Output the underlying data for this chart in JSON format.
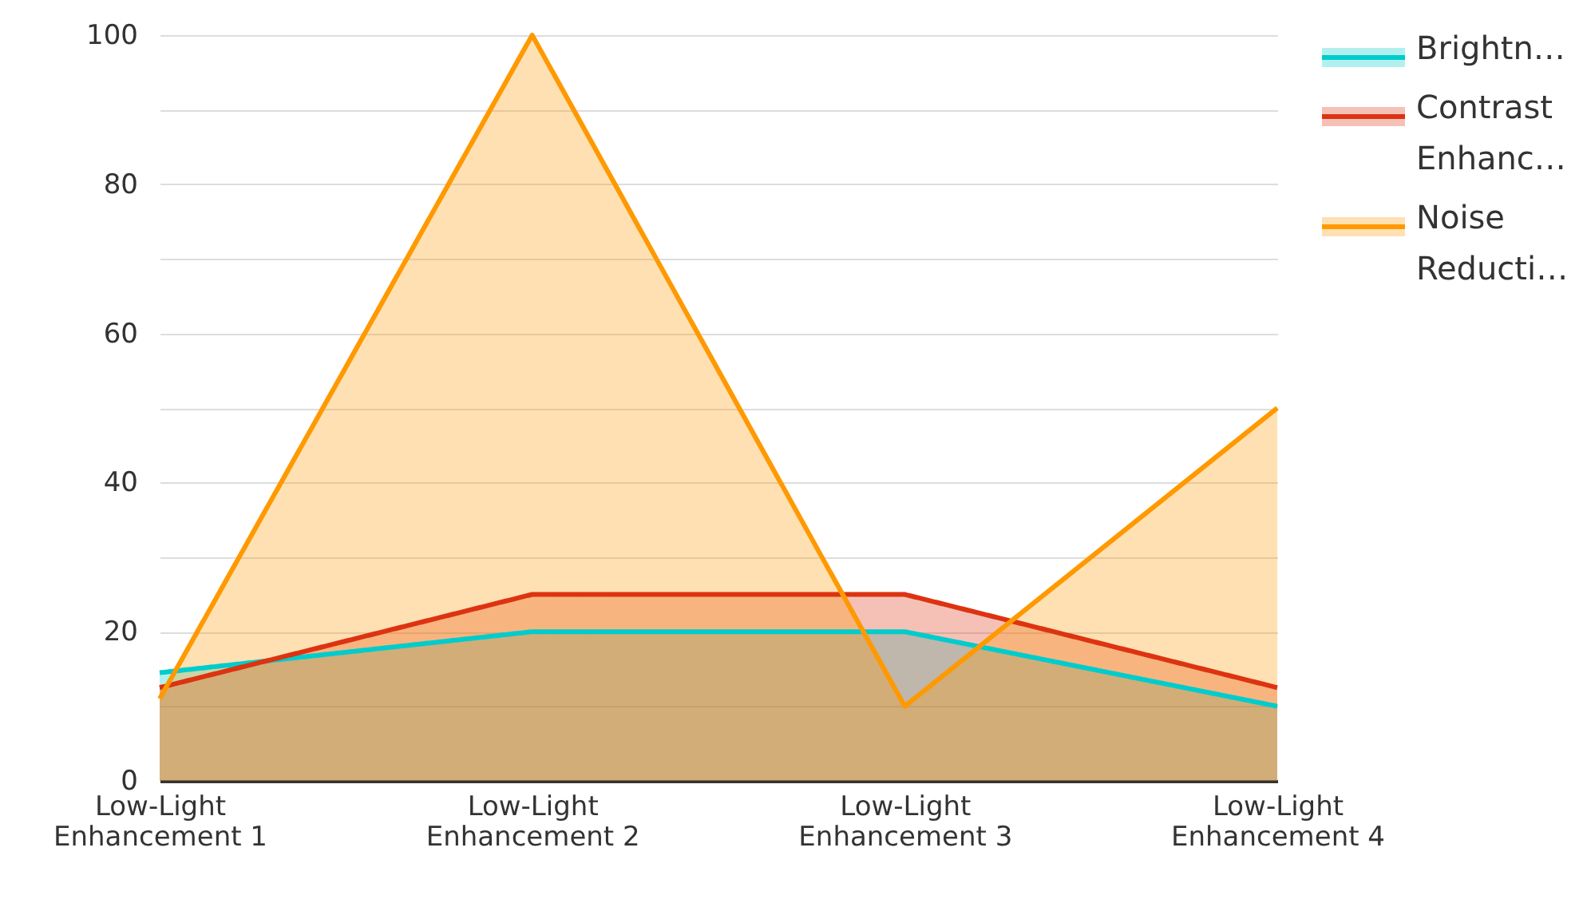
{
  "chart_data": {
    "type": "area",
    "categories": [
      "Low-Light Enhancement 1",
      "Low-Light Enhancement 2",
      "Low-Light Enhancement 3",
      "Low-Light Enhancement 4"
    ],
    "series": [
      {
        "name": "Brightn…",
        "color": "#00cccc",
        "values": [
          14.5,
          20,
          20,
          10
        ]
      },
      {
        "name": "Contrast Enhanc…",
        "color": "#dd3311",
        "values": [
          12.5,
          25,
          25,
          12.5
        ]
      },
      {
        "name": "Noise Reducti…",
        "color": "#ff9900",
        "values": [
          11,
          100,
          10,
          50
        ]
      }
    ],
    "ylim": [
      0,
      100
    ],
    "yticks": [
      0,
      {
        "value": 10,
        "label": null
      },
      20,
      {
        "value": 30,
        "label": null
      },
      40,
      {
        "value": 50,
        "label": null
      },
      60,
      {
        "value": 70,
        "label": null
      },
      80,
      {
        "value": 90,
        "label": null
      },
      100
    ],
    "grid": "y",
    "legend": "top right",
    "marker": "none",
    "line_style": "solid"
  }
}
